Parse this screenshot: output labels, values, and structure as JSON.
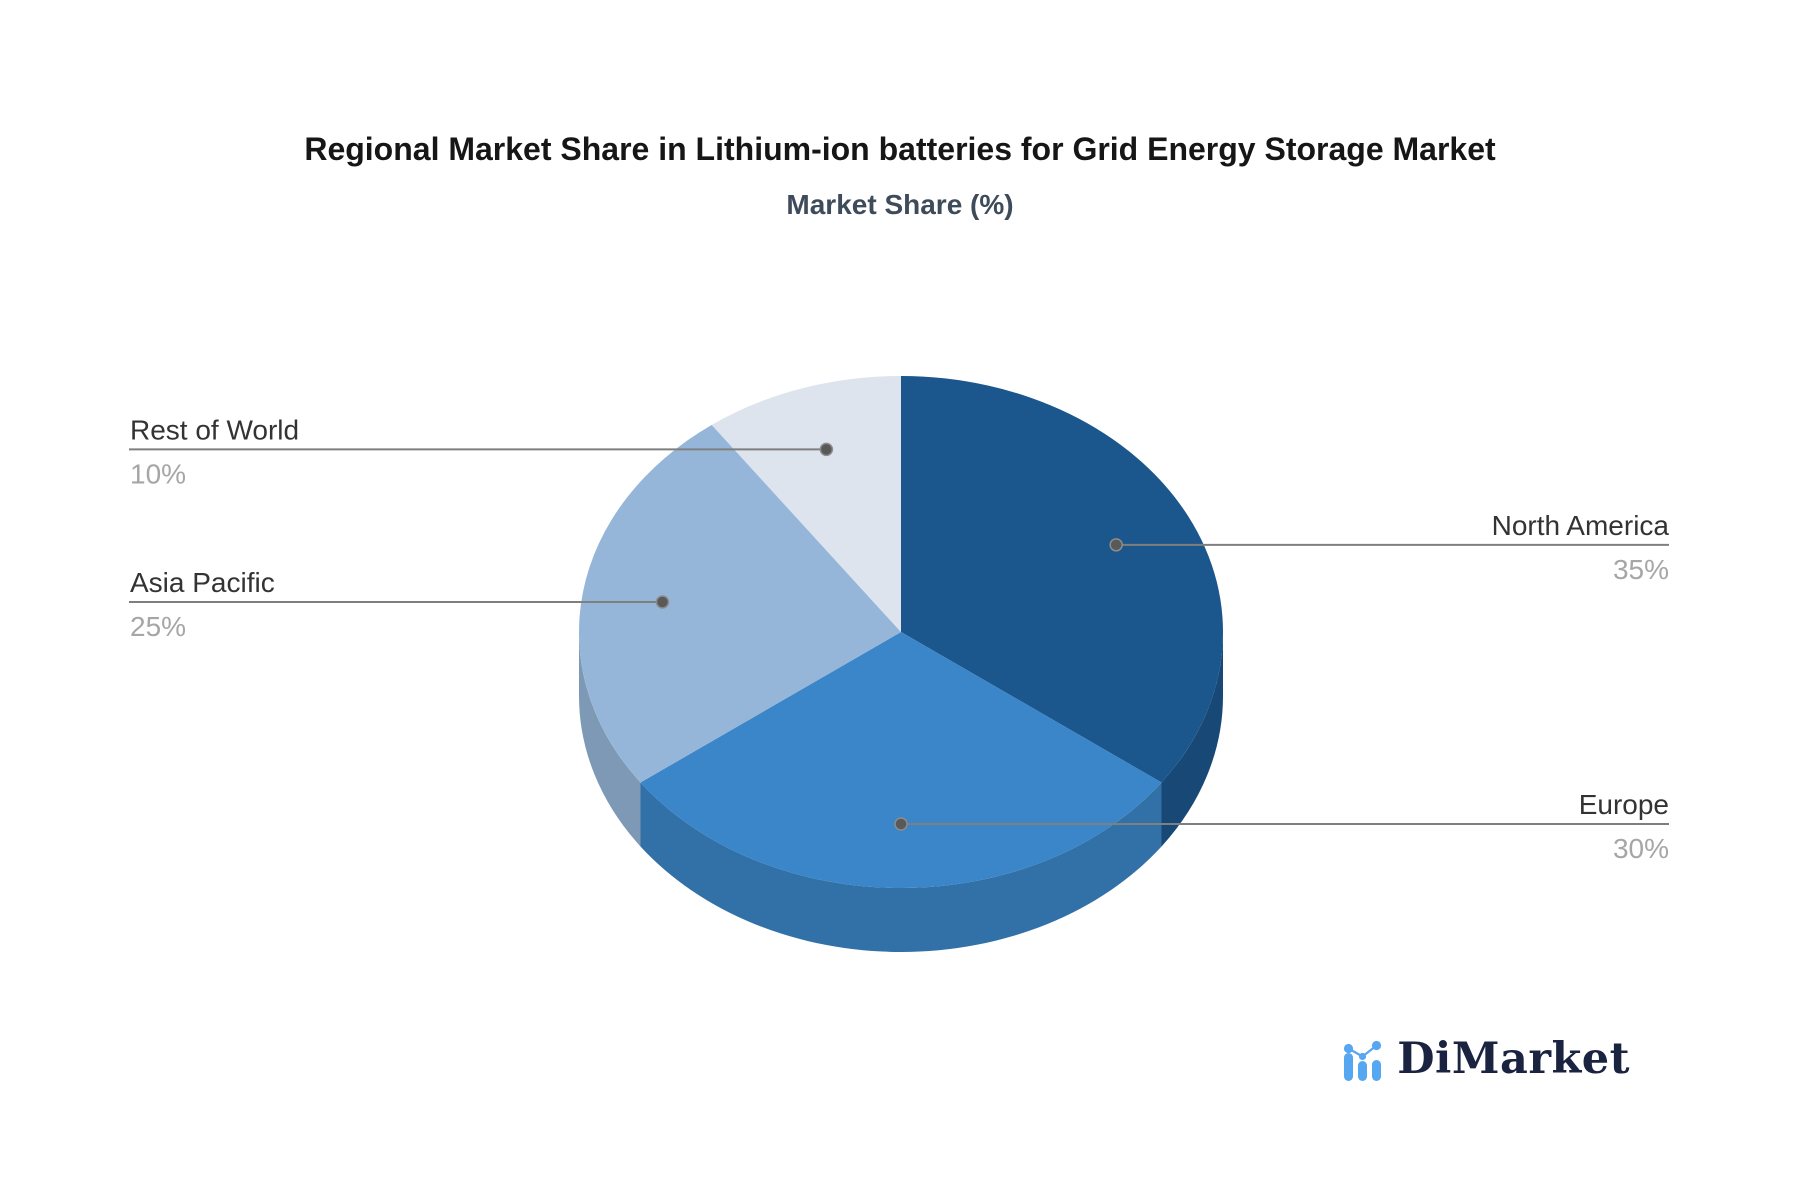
{
  "header": {
    "title": "Regional Market Share in Lithium-ion batteries for Grid Energy Storage Market",
    "subtitle": "Market Share (%)",
    "title_color": "#161616",
    "subtitle_color": "#3e4b5a"
  },
  "chart_data": {
    "type": "pie",
    "three_d": true,
    "title": "Regional Market Share in Lithium-ion batteries for Grid Energy Storage Market",
    "subtitle": "Market Share (%)",
    "unit": "%",
    "start_angle_deg": 0,
    "direction": "clockwise",
    "legend_position": "none",
    "slices": [
      {
        "label": "North America",
        "value": 35,
        "color": "#1b568c"
      },
      {
        "label": "Europe",
        "value": 30,
        "color": "#3a86c8"
      },
      {
        "label": "Asia Pacific",
        "value": 25,
        "color": "#96b6d9"
      },
      {
        "label": "Rest of World",
        "value": 10,
        "color": "#dde4ee"
      }
    ],
    "connector_color": "#7f7f7f",
    "dot_color": "#595959",
    "label_color": "#333333",
    "pct_color": "#a6a6a6"
  },
  "branding": {
    "logo_text": "DiMarket",
    "logo_icon": "bar-chart-logo-icon",
    "text_color": "#1a2340",
    "icon_color": "#55a7f2"
  }
}
